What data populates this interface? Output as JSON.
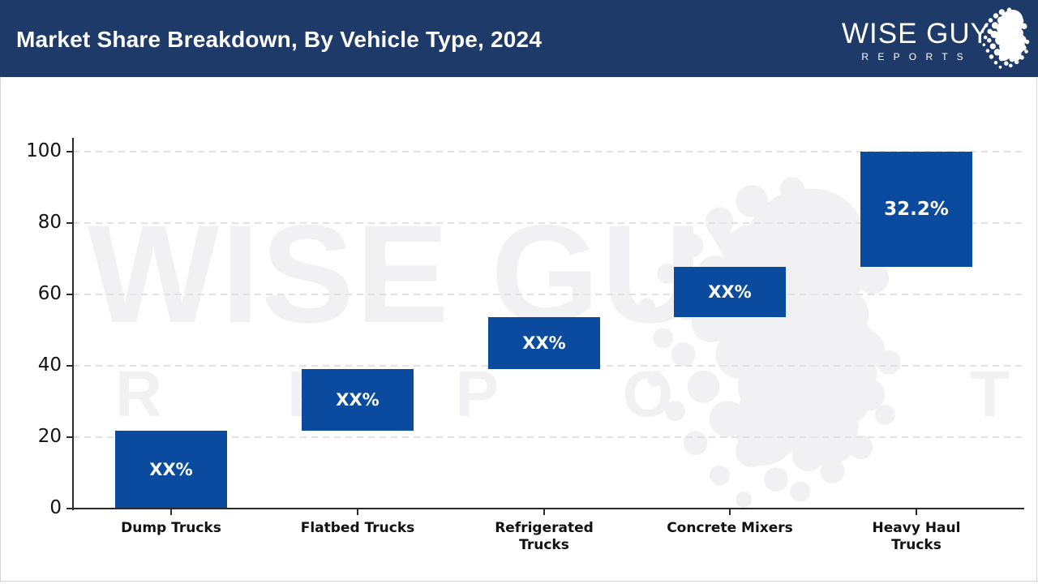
{
  "header": {
    "title": "Market Share Breakdown, By Vehicle Type, 2024",
    "logo_line1": "WISE GUY",
    "logo_line2": "R E P O R T S"
  },
  "watermark": {
    "line1": "WISE GUY",
    "line2": "R E P O R T S"
  },
  "colors": {
    "header_bg": "#1e3a69",
    "bar": "#0b4b9f",
    "grid": "#e2e2e2",
    "axis": "#2b2b2b",
    "bar_label": "#ffffff",
    "watermark": "#f1f1f4"
  },
  "chart_data": {
    "type": "bar",
    "subtype": "waterfall-market-share",
    "title": "Market Share Breakdown, By Vehicle Type, 2024",
    "categories": [
      "Dump Trucks",
      "Flatbed Trucks",
      "Refrigerated Trucks",
      "Concrete Mixers",
      "Heavy Haul Trucks"
    ],
    "segments": [
      {
        "category": "Dump Trucks",
        "start": 0,
        "end": 21.7,
        "value": 21.7,
        "label": "XX%"
      },
      {
        "category": "Flatbed Trucks",
        "start": 21.7,
        "end": 39.1,
        "value": 17.4,
        "label": "XX%"
      },
      {
        "category": "Refrigerated Trucks",
        "start": 39.1,
        "end": 53.5,
        "value": 14.4,
        "label": "XX%"
      },
      {
        "category": "Concrete Mixers",
        "start": 53.5,
        "end": 67.8,
        "value": 14.3,
        "label": "XX%"
      },
      {
        "category": "Heavy Haul Trucks",
        "start": 67.8,
        "end": 100,
        "value": 32.2,
        "label": "32.2%"
      }
    ],
    "yticks": [
      0,
      20,
      40,
      60,
      80,
      100
    ],
    "ylim": [
      0,
      100
    ],
    "xlabel": "",
    "ylabel": "",
    "grid": "horizontal-dashed",
    "legend": "none",
    "annotations": "segment percentage labels inside bars, white bold"
  }
}
